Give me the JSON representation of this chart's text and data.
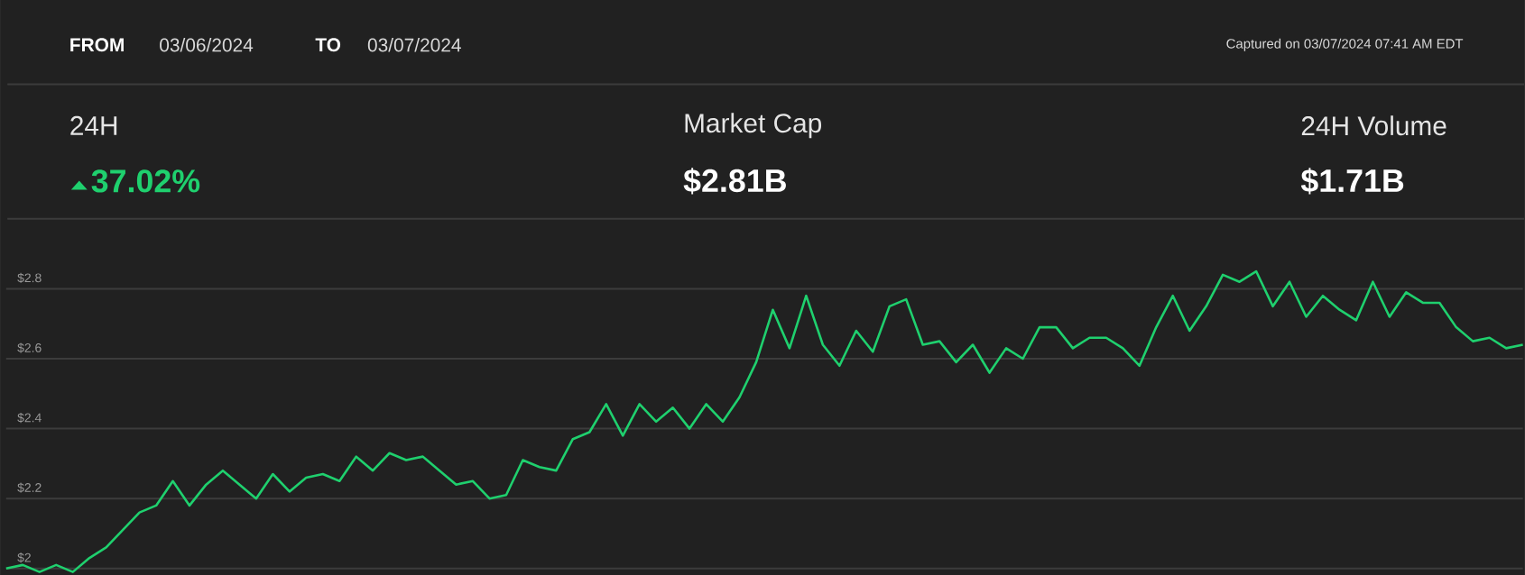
{
  "chart_data": {
    "type": "line",
    "annotations": [
      "FROM",
      "03/06/2024",
      "TO",
      "03/07/2024",
      "Captured on 03/07/2024 07:41 AM EDT",
      "24H",
      "37.02%",
      "Market Cap",
      "$2.81B",
      "24H Volume",
      "$1.71B"
    ],
    "categories": [
      null,
      null,
      null,
      null,
      null,
      null,
      null,
      null,
      null,
      null,
      null,
      null,
      null,
      null,
      null,
      null,
      null,
      null,
      null,
      null,
      null,
      null,
      null,
      null,
      null,
      null,
      null,
      null,
      null,
      null,
      null,
      null,
      null,
      null,
      null,
      null,
      null,
      null,
      null,
      null,
      null,
      null,
      null,
      null,
      null,
      null,
      null,
      null,
      null,
      null,
      null,
      null,
      null,
      null,
      null,
      null,
      null,
      null,
      null,
      null,
      null,
      null,
      null,
      null,
      null,
      null,
      null,
      null,
      null,
      null,
      null,
      null,
      null,
      null,
      null,
      null,
      null,
      null,
      null,
      null,
      null,
      null,
      null,
      null,
      null,
      null,
      null,
      null,
      null,
      null,
      null,
      null
    ],
    "values": [
      2.0,
      2.01,
      1.99,
      2.01,
      1.99,
      2.03,
      2.06,
      2.11,
      2.16,
      2.18,
      2.25,
      2.18,
      2.24,
      2.28,
      2.24,
      2.2,
      2.27,
      2.22,
      2.26,
      2.27,
      2.25,
      2.32,
      2.28,
      2.33,
      2.31,
      2.32,
      2.28,
      2.24,
      2.25,
      2.2,
      2.21,
      2.31,
      2.29,
      2.28,
      2.37,
      2.39,
      2.47,
      2.38,
      2.47,
      2.42,
      2.46,
      2.4,
      2.47,
      2.42,
      2.49,
      2.59,
      2.74,
      2.63,
      2.78,
      2.64,
      2.58,
      2.68,
      2.62,
      2.75,
      2.77,
      2.64,
      2.65,
      2.59,
      2.64,
      2.56,
      2.63,
      2.6,
      2.69,
      2.69,
      2.63,
      2.66,
      2.66,
      2.63,
      2.58,
      2.69,
      2.78,
      2.68,
      2.75,
      2.84,
      2.82,
      2.85,
      2.75,
      2.82,
      2.72,
      2.78,
      2.74,
      2.71,
      2.82,
      2.72,
      2.79,
      2.76,
      2.76,
      2.69,
      2.65,
      2.66,
      2.63,
      2.64
    ],
    "color": "#1fd06e",
    "ylim": [
      1.98,
      3.62
    ],
    "yticks": [
      {
        "value": 2,
        "label": "$2"
      },
      {
        "value": 2.2,
        "label": "$2.2"
      },
      {
        "value": 2.4,
        "label": "$2.4"
      },
      {
        "value": 2.6,
        "label": "$2.6"
      },
      {
        "value": 2.8,
        "label": "$2.8"
      }
    ],
    "grid": "y",
    "tick_labels": "y"
  }
}
